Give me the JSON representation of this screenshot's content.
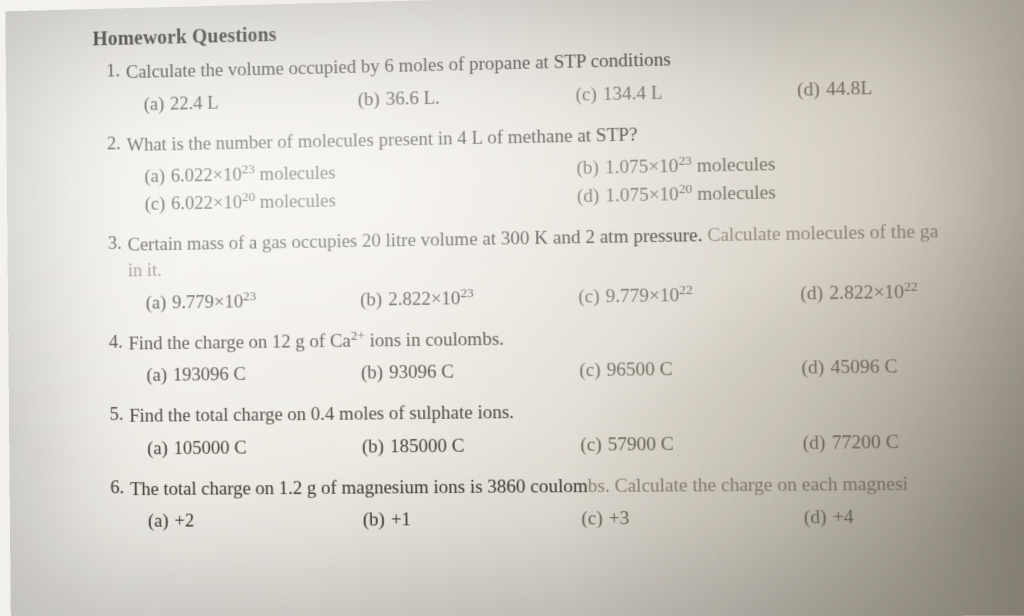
{
  "title": "Homework Questions",
  "questions": [
    {
      "num": "1.",
      "prompt": "Calculate the volume occupied by 6 moles of propane at STP conditions",
      "opts": [
        {
          "k": "(a)",
          "v": "22.4 L"
        },
        {
          "k": "(b)",
          "v": "36.6 L."
        },
        {
          "k": "(c)",
          "v": "134.4 L",
          "cls": "fade-right"
        },
        {
          "k": "(d)",
          "v": "44.8L",
          "cls": "blur-right"
        }
      ]
    },
    {
      "num": "2.",
      "prompt": "What is the number of molecules present in 4 L of methane at STP?",
      "opts": [
        {
          "k": "(a)",
          "v": "6.022×10<sup>23</sup> molecules",
          "wide": true
        },
        {
          "k": "(b)",
          "v": "1.075×10<sup>23</sup> molecules",
          "wide": true,
          "cls": "fade-right"
        },
        {
          "k": "(c)",
          "v": "6.022×10<sup>20</sup> molecules",
          "wide": true
        },
        {
          "k": "(d)",
          "v": "1.075×10<sup>20</sup> molecules",
          "wide": true,
          "cls": "fade-right"
        }
      ]
    },
    {
      "num": "3.",
      "prompt": "Certain mass of a gas occupies 20 litre volume at 300 K and 2 atm pressure. Calculate molecules of the ga<br>in it.",
      "promptCls": "faint-tail",
      "opts": [
        {
          "k": "(a)",
          "v": "9.779×10<sup>23</sup>"
        },
        {
          "k": "(b)",
          "v": "2.822×10<sup>23</sup>"
        },
        {
          "k": "(c)",
          "v": "9.779×10<sup>22</sup>",
          "cls": "fade-right"
        },
        {
          "k": "(d)",
          "v": "2.822×10<sup>22</sup>",
          "cls": "blur-right"
        }
      ]
    },
    {
      "num": "4.",
      "prompt": "Find the charge on 12 g of Ca<sup>2+</sup> ions in coulombs.",
      "opts": [
        {
          "k": "(a)",
          "v": "193096 C"
        },
        {
          "k": "(b)",
          "v": "93096 C"
        },
        {
          "k": "(c)",
          "v": "96500 C",
          "cls": "fade-right"
        },
        {
          "k": "(d)",
          "v": "45096 C",
          "cls": "blur-right"
        }
      ]
    },
    {
      "num": "5.",
      "prompt": "Find the total charge on 0.4 moles of sulphate ions.",
      "opts": [
        {
          "k": "(a)",
          "v": "105000 C"
        },
        {
          "k": "(b)",
          "v": "185000 C"
        },
        {
          "k": "(c)",
          "v": "57900 C",
          "cls": "fade-right"
        },
        {
          "k": "(d)",
          "v": "77200 C",
          "cls": "blur-right"
        }
      ]
    },
    {
      "num": "6.",
      "prompt": "The total charge on 1.2 g of magnesium ions is 3860 coulombs. Calculate the charge on each magnesi",
      "promptCls": "faint-tail",
      "opts": [
        {
          "k": "(a)",
          "v": "+2"
        },
        {
          "k": "(b)",
          "v": "+1"
        },
        {
          "k": "(c)",
          "v": "+3",
          "cls": "fade-right"
        },
        {
          "k": "(d)",
          "v": "+4",
          "cls": "blur-right"
        }
      ]
    }
  ]
}
